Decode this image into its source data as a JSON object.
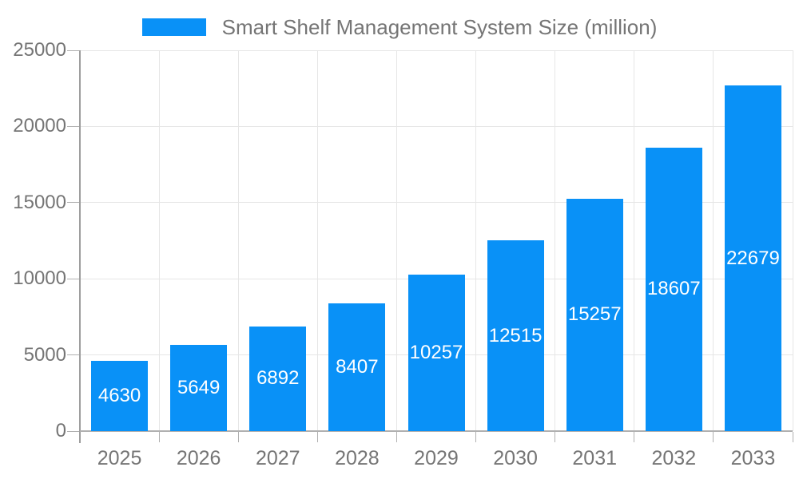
{
  "chart_data": {
    "type": "bar",
    "title": "Smart Shelf Management System Size (million)",
    "series_name": "Smart Shelf Management System Size (million)",
    "categories": [
      "2025",
      "2026",
      "2027",
      "2028",
      "2029",
      "2030",
      "2031",
      "2032",
      "2033"
    ],
    "values": [
      4630,
      5649,
      6892,
      8407,
      10257,
      12515,
      15257,
      18607,
      22679
    ],
    "value_labels": [
      "4630",
      "5649",
      "6892",
      "8407",
      "10257",
      "12515",
      "15257",
      "18607",
      "22679"
    ],
    "xlabel": "",
    "ylabel": "",
    "ylim": [
      0,
      25000
    ],
    "yticks": [
      0,
      5000,
      10000,
      15000,
      20000,
      25000
    ],
    "ytick_labels": [
      "0",
      "5000",
      "10000",
      "15000",
      "20000",
      "25000"
    ],
    "grid": true,
    "legend_position": "top-center",
    "colors": {
      "bar": "#0991f7",
      "bar_label_text": "#ffffff",
      "axis_text": "#757575",
      "legend_text": "#757575",
      "grid_line": "#e6e6e6",
      "axis_line": "#b0b0b0"
    }
  }
}
